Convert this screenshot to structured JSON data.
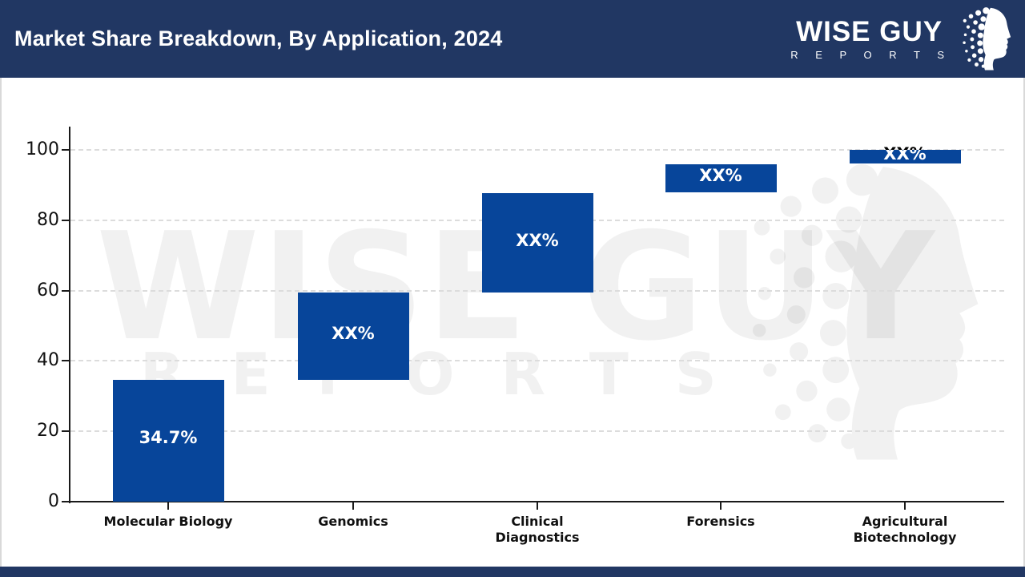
{
  "header": {
    "title": "Market Share Breakdown, By Application, 2024",
    "logo_line1": "WISE GUY",
    "logo_line2": "R E P O R T S"
  },
  "watermark": {
    "line1": "WISE GUY",
    "line2": "REPORTS"
  },
  "colors": {
    "header_bg": "#213763",
    "footer_bg": "#213763",
    "bar": "#07459A",
    "grid": "#DCDCDC",
    "axis": "#1A1A1A",
    "bar_label": "#FFFFFF",
    "overflow_label": "#000000"
  },
  "chart_data": {
    "type": "bar",
    "subtype": "waterfall-floating-segments",
    "title": "Market Share Breakdown, By Application, 2024",
    "xlabel": "",
    "ylabel": "",
    "y_ticks": [
      0,
      20,
      40,
      60,
      80,
      100
    ],
    "ylim": [
      0,
      105
    ],
    "grid": "horizontal-dashed",
    "legend": "none",
    "categories": [
      "Molecular Biology",
      "Genomics",
      "Clinical Diagnostics",
      "Forensics",
      "Agricultural Biotechnology"
    ],
    "category_lines": [
      [
        "Molecular Biology"
      ],
      [
        "Genomics"
      ],
      [
        "Clinical",
        "Diagnostics"
      ],
      [
        "Forensics"
      ],
      [
        "Agricultural",
        "Biotechnology"
      ]
    ],
    "segments": [
      {
        "category": "Molecular Biology",
        "start": 0,
        "end": 34.7,
        "label": "34.7%"
      },
      {
        "category": "Genomics",
        "start": 34.7,
        "end": 59.4,
        "label": "XX%"
      },
      {
        "category": "Clinical Diagnostics",
        "start": 59.4,
        "end": 87.7,
        "label": "XX%"
      },
      {
        "category": "Forensics",
        "start": 88.0,
        "end": 95.9,
        "label": "XX%"
      },
      {
        "category": "Agricultural Biotechnology",
        "start": 96.1,
        "end": 99.9,
        "label": "XX%"
      }
    ]
  }
}
